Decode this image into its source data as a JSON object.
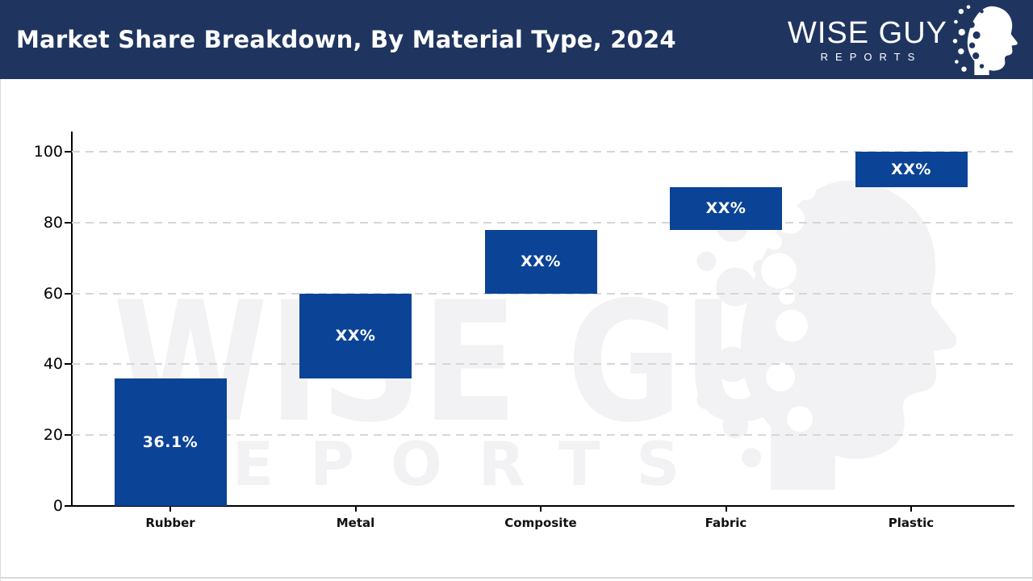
{
  "header": {
    "title": "Market Share Breakdown, By Material Type, 2024",
    "logo": {
      "line1": "WISE GUY",
      "line2": "REPORTS"
    }
  },
  "watermark": {
    "line1": "WISE GUY",
    "line2": "REPORTS"
  },
  "chart_data": {
    "type": "bar",
    "variant": "waterfall",
    "title": "Market Share Breakdown, By Material Type, 2024",
    "categories": [
      "Rubber",
      "Metal",
      "Composite",
      "Fabric",
      "Plastic"
    ],
    "segments": [
      {
        "category": "Rubber",
        "start": 0,
        "end": 36.1,
        "label": "36.1%"
      },
      {
        "category": "Metal",
        "start": 36.1,
        "end": 60,
        "label": "XX%"
      },
      {
        "category": "Composite",
        "start": 60,
        "end": 78,
        "label": "XX%"
      },
      {
        "category": "Fabric",
        "start": 78,
        "end": 90,
        "label": "XX%"
      },
      {
        "category": "Plastic",
        "start": 90,
        "end": 100,
        "label": "XX%"
      }
    ],
    "yticks": [
      0,
      20,
      40,
      60,
      80,
      100
    ],
    "ylim": [
      0,
      107
    ],
    "xlabel": "",
    "ylabel": "",
    "grid": "horizontal-dashed",
    "legend": "none"
  },
  "colors": {
    "header_bg": "#1f3560",
    "title_text": "#ffffff",
    "bar_fill": "#0b4397",
    "bar_label": "#ffffff",
    "axis": "#000000",
    "gridline": "#d6d6d6",
    "watermark": "#f2f2f4",
    "edge_border": "#d9d9d9"
  }
}
